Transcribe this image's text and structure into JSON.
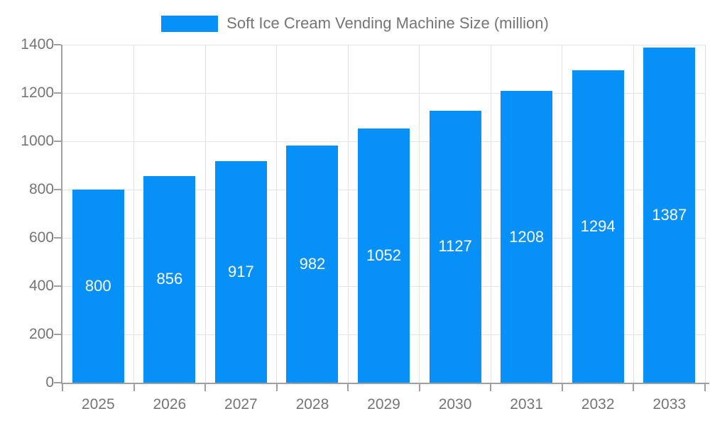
{
  "legend": {
    "label": "Soft Ice Cream Vending Machine Size (million)",
    "swatch_color": "#0890f9"
  },
  "chart_data": {
    "type": "bar",
    "title": "Soft Ice Cream Vending Machine Size (million)",
    "categories": [
      "2025",
      "2026",
      "2027",
      "2028",
      "2029",
      "2030",
      "2031",
      "2032",
      "2033"
    ],
    "values": [
      800,
      856,
      917,
      982,
      1052,
      1127,
      1208,
      1294,
      1387
    ],
    "xlabel": "",
    "ylabel": "",
    "ylim": [
      0,
      1400
    ],
    "yticks": [
      0,
      200,
      400,
      600,
      800,
      1000,
      1200,
      1400
    ],
    "grid": true,
    "legend_position": "top",
    "bar_color": "#0890f9",
    "bar_label_color": "#ffffff",
    "axis_text_color": "#757575",
    "gridline_color": "#e3e3e3",
    "axis_line_color": "#9f9f9f",
    "background_color": "#ffffff"
  }
}
